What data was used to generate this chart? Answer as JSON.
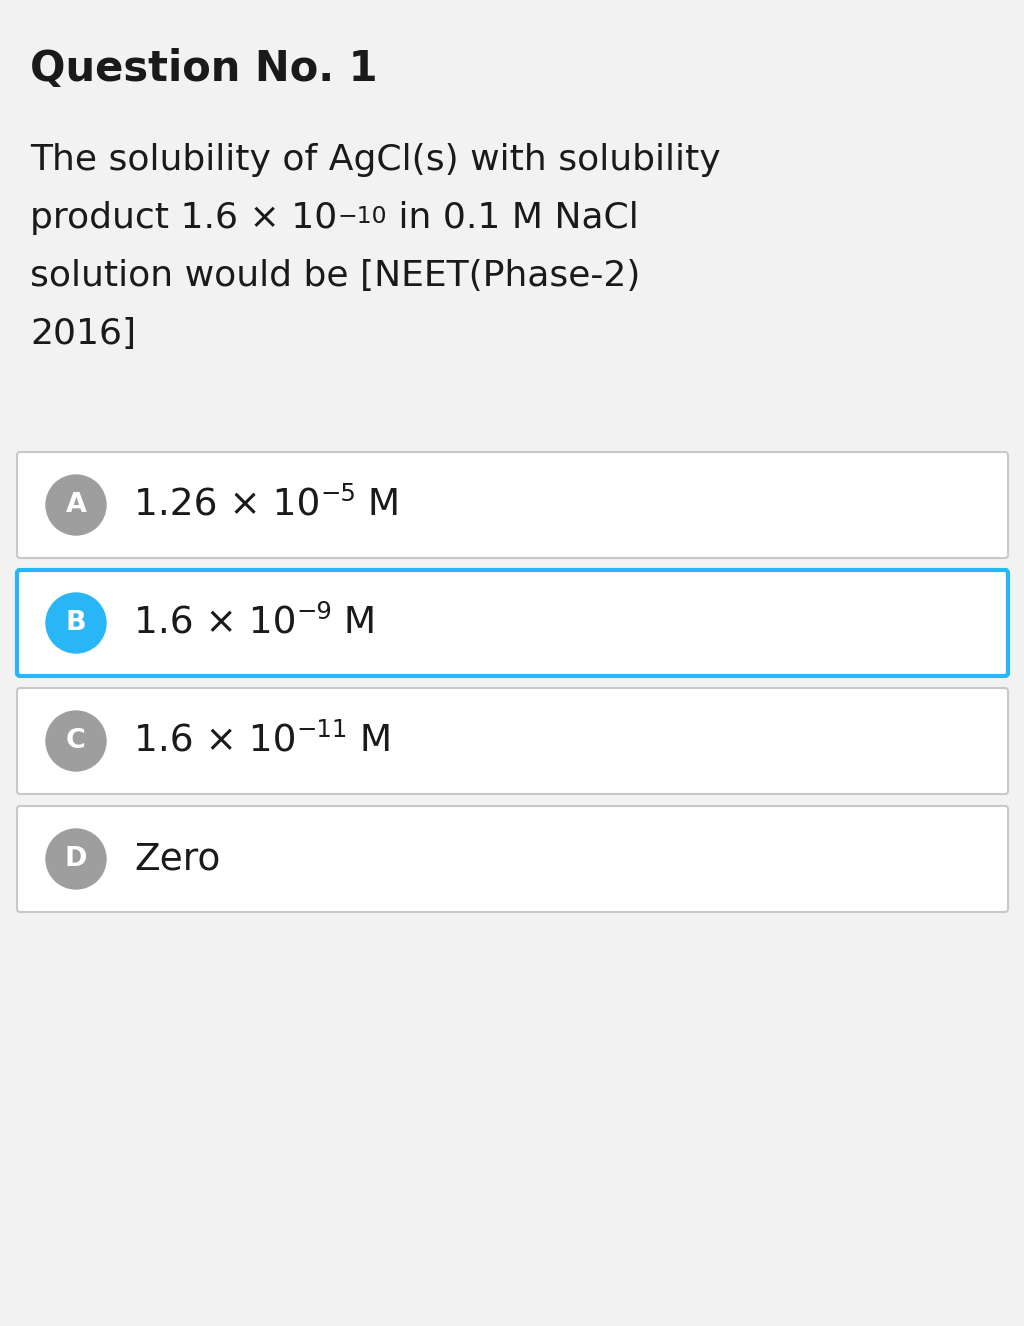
{
  "title": "Question No. 1",
  "q_lines": [
    {
      "parts": [
        {
          "text": "The solubility of AgCl(s) with solubility",
          "sup": ""
        }
      ]
    },
    {
      "parts": [
        {
          "text": "product 1.6 × 10",
          "sup": "−10"
        },
        {
          "text": " in 0.1 M NaCl",
          "sup": ""
        }
      ]
    },
    {
      "parts": [
        {
          "text": "solution would be [NEET(Phase-2)",
          "sup": ""
        }
      ]
    },
    {
      "parts": [
        {
          "text": "2016]",
          "sup": ""
        }
      ]
    }
  ],
  "options": [
    {
      "label": "A",
      "parts": [
        {
          "text": "1.26 × 10",
          "sup": "−5"
        },
        {
          "text": " M",
          "sup": ""
        }
      ],
      "selected": false
    },
    {
      "label": "B",
      "parts": [
        {
          "text": "1.6 × 10",
          "sup": "−9"
        },
        {
          "text": " M",
          "sup": ""
        }
      ],
      "selected": true
    },
    {
      "label": "C",
      "parts": [
        {
          "text": "1.6 × 10",
          "sup": "−11"
        },
        {
          "text": " M",
          "sup": ""
        }
      ],
      "selected": false
    },
    {
      "label": "D",
      "parts": [
        {
          "text": "Zero",
          "sup": ""
        }
      ],
      "selected": false
    }
  ],
  "bg_color": "#f2f2f2",
  "card_bg": "#ffffff",
  "title_color": "#1a1a1a",
  "question_color": "#1a1a1a",
  "option_text_color": "#1a1a1a",
  "selected_border_color": "#29b6f6",
  "unselected_border_color": "#c8c8c8",
  "selected_circle_color": "#29b6f6",
  "unselected_circle_color": "#9e9e9e",
  "circle_text_color": "#ffffff"
}
